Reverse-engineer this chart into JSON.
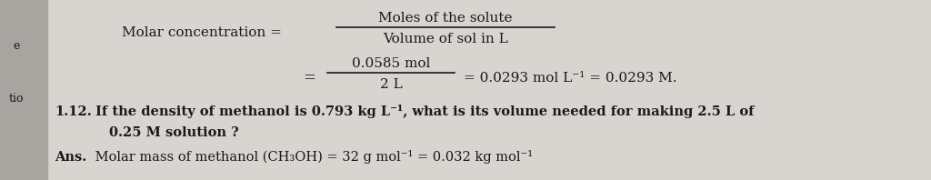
{
  "bg_color": "#c8c4c0",
  "page_color": "#d8d4d0",
  "text_color": "#1a1a1a",
  "figsize": [
    10.24,
    1.98
  ],
  "dpi": 100,
  "left_band_color": "#a8a4a0",
  "fraction1_numerator": "Moles of the solute",
  "fraction1_denominator": "Volume of sol in L",
  "label_molar": "Molar concentration =",
  "frac2_num": "0.0585 mol",
  "frac2_den": "2 L",
  "eq_equals": "=",
  "eq_right": "= 0.0293 mol L⁻¹ = 0.0293 M.",
  "line3_num": "1.12.",
  "line3_bold": " If the density of methanol is 0.793 kg L⁻¹, what is its volume needed for making 2.5 L of",
  "line4": "0.25 M solution ?",
  "line5_label": "Ans.",
  "line5_text": " Molar mass of methanol (CH₃OH) = 32 g mol⁻¹ = 0.032 kg mol⁻¹"
}
